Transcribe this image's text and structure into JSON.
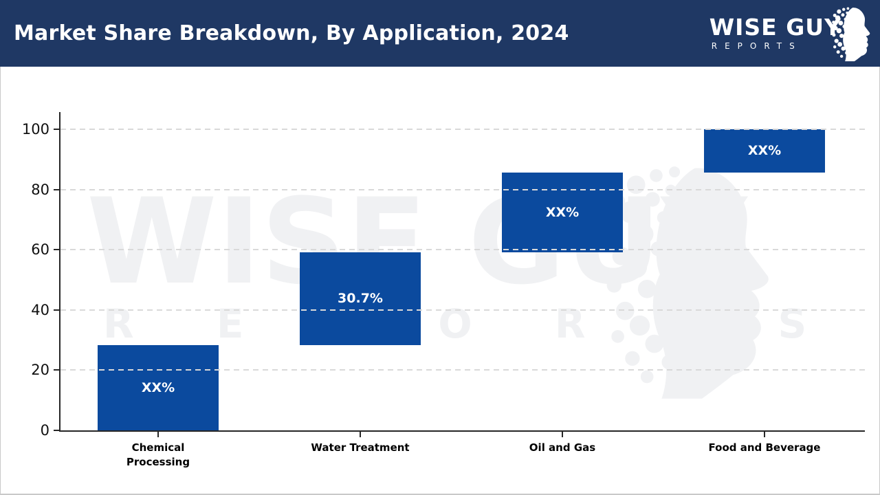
{
  "header": {
    "title": "Market Share Breakdown, By Application, 2024",
    "logo": {
      "line1": "WISE GUY",
      "line2": "REPORTS"
    }
  },
  "watermark": {
    "line1": "WISE GUY",
    "line2": "R E P O R T S"
  },
  "chart_data": {
    "type": "bar",
    "subtype": "waterfall",
    "title": "Market Share Breakdown, By Application, 2024",
    "categories": [
      "Chemical\nProcessing",
      "Water Treatment",
      "Oil and Gas",
      "Food and Beverage"
    ],
    "segments": [
      {
        "category": "Chemical Processing",
        "start": 0,
        "end": 28.4,
        "size_pct": 28.4,
        "label": "XX%"
      },
      {
        "category": "Water Treatment",
        "start": 28.4,
        "end": 59.1,
        "size_pct": 30.7,
        "label": "30.7%"
      },
      {
        "category": "Oil and Gas",
        "start": 59.1,
        "end": 85.7,
        "size_pct": 26.6,
        "label": "XX%"
      },
      {
        "category": "Food and Beverage",
        "start": 85.7,
        "end": 100,
        "size_pct": 14.3,
        "label": "XX%"
      }
    ],
    "yticks": [
      0,
      20,
      40,
      60,
      80,
      100
    ],
    "ylim": [
      0,
      106
    ],
    "xlabel": "",
    "ylabel": "",
    "grid": "horizontal dashed, drawn over bars",
    "legend": "none",
    "bar_color": "#0b4a9e"
  },
  "colors": {
    "header_bg": "#1f3864",
    "bar_blue": "#0b4a9e",
    "grid_gray": "#d9d9d9",
    "axis_dark": "#262626",
    "watermark_gray": "#f0f1f3",
    "frame_gray": "#c9c9c9"
  }
}
